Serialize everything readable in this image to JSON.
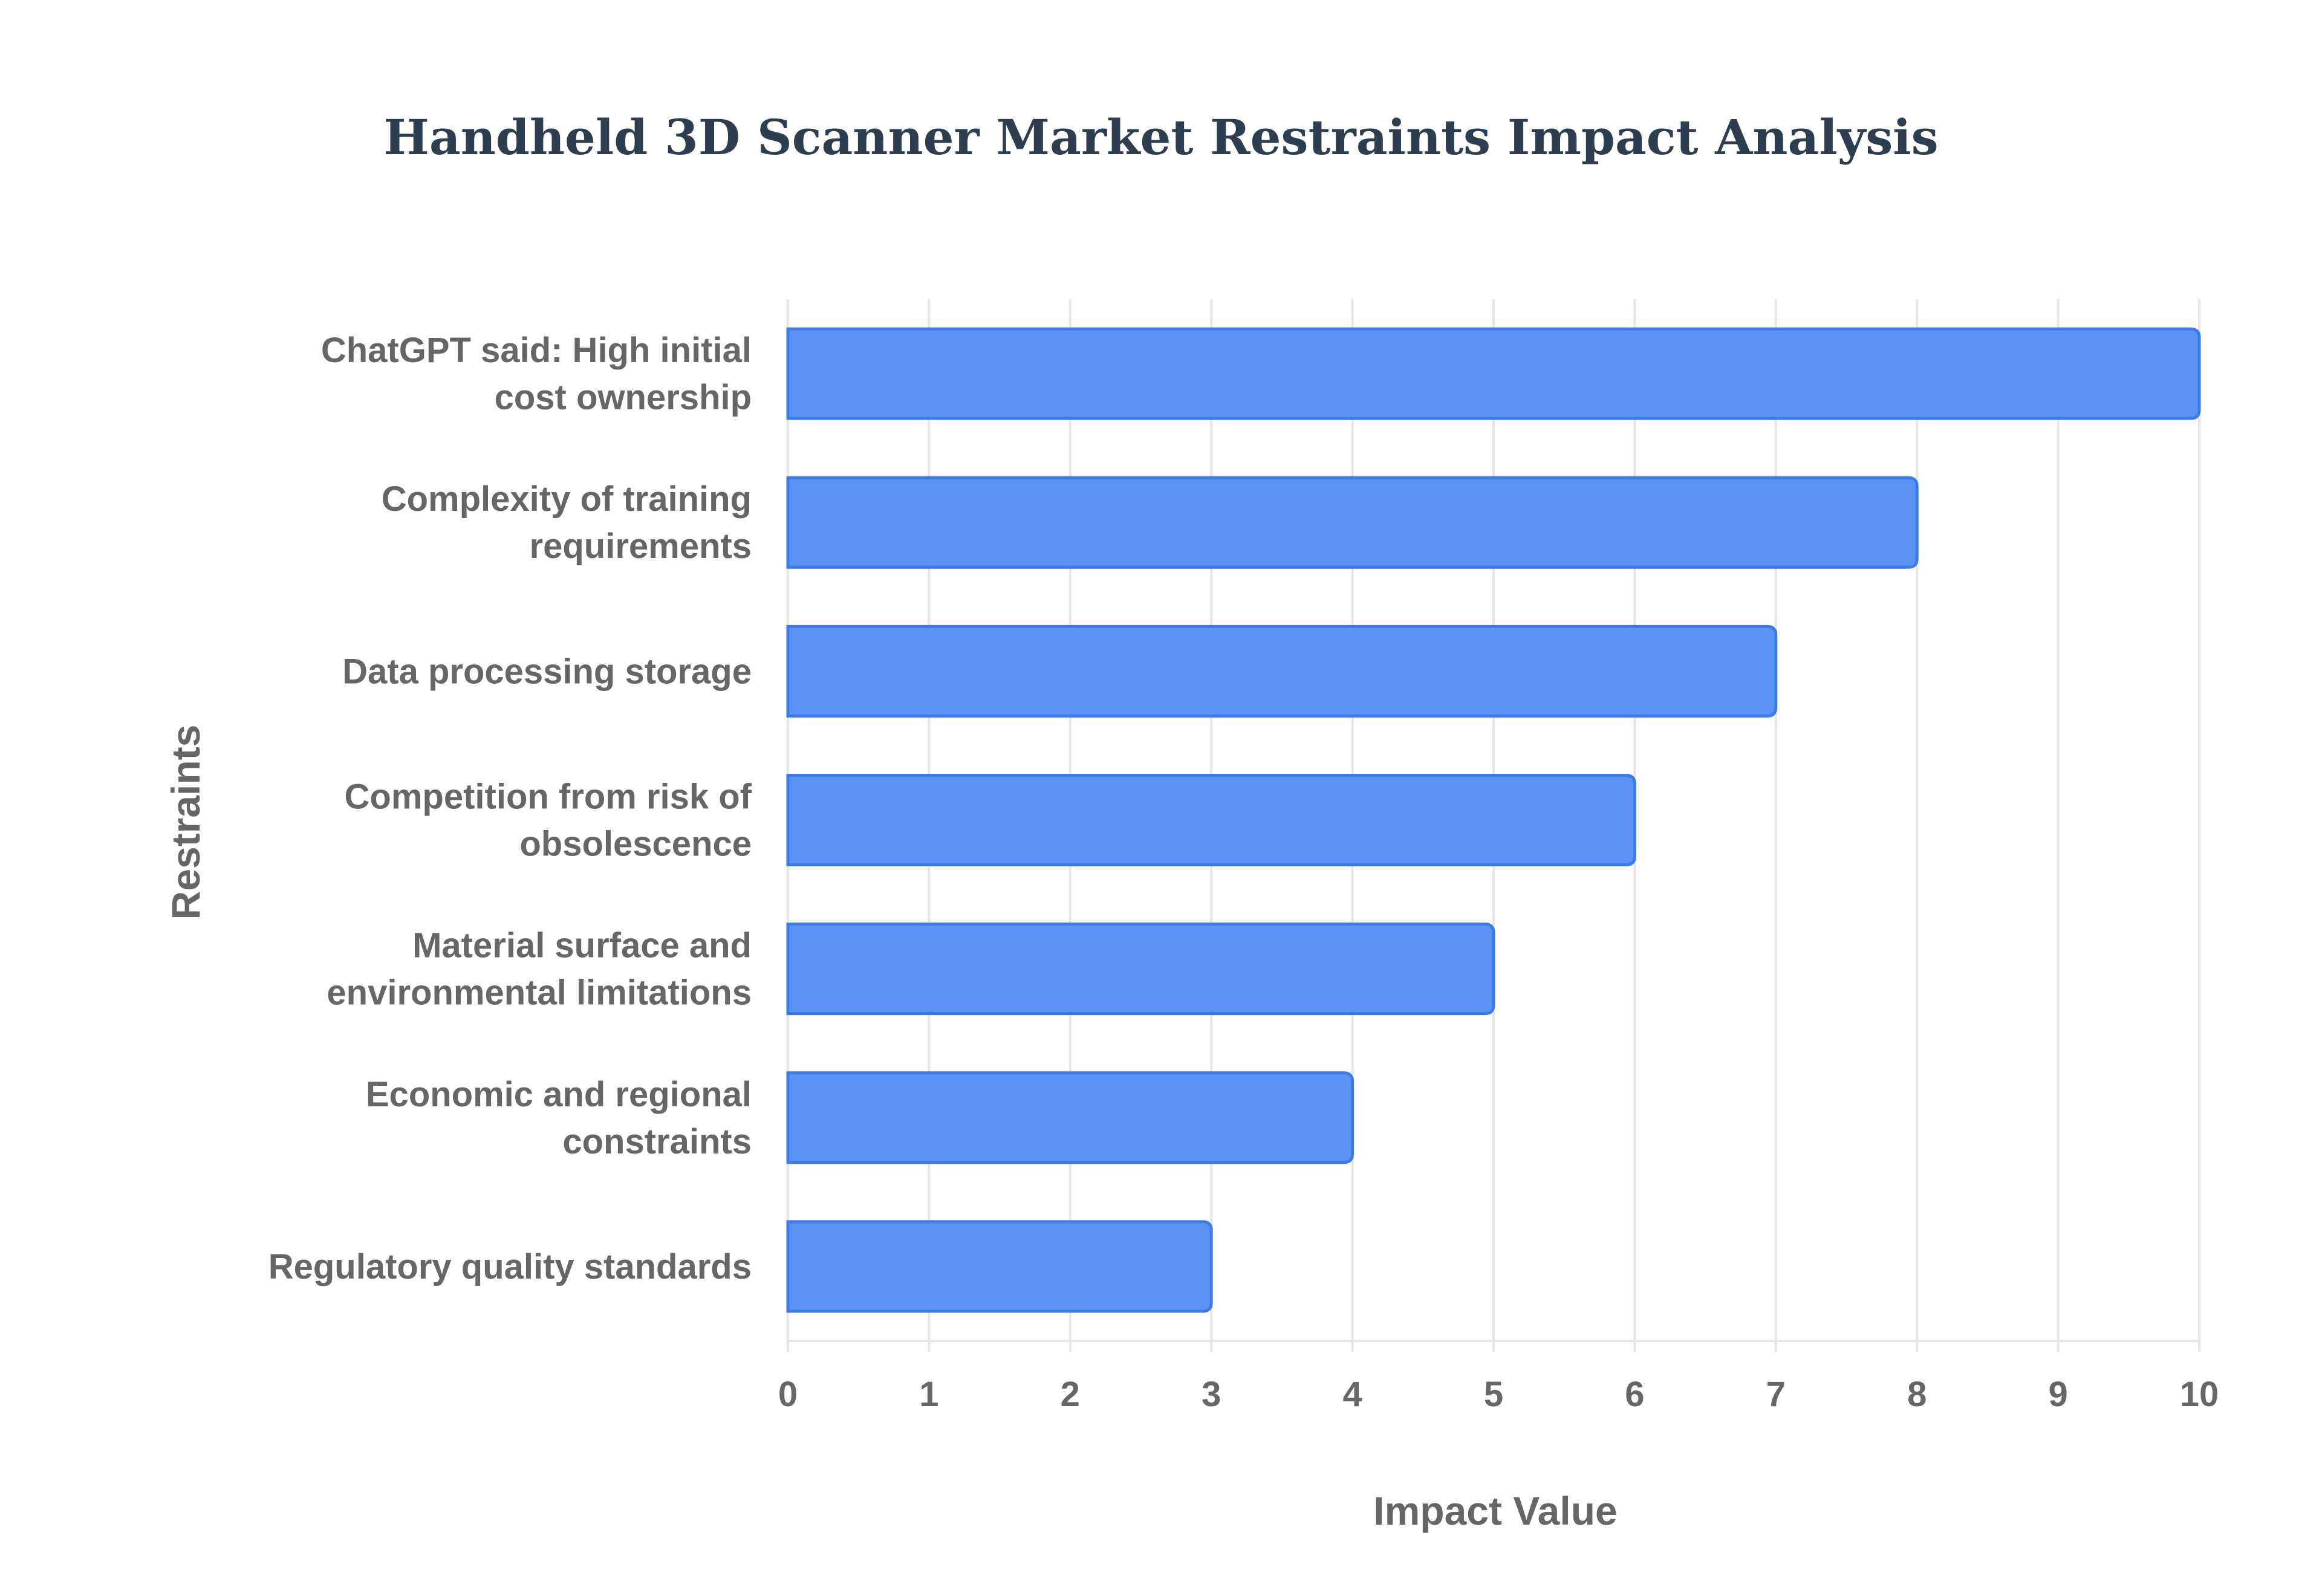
{
  "chart_data": {
    "type": "bar",
    "orientation": "horizontal",
    "title": "Handheld 3D Scanner Market Restraints Impact Analysis",
    "xlabel": "Impact Value",
    "ylabel": "Restraints",
    "categories": [
      [
        "ChatGPT said: High initial",
        "cost ownership"
      ],
      [
        "Complexity of training",
        "requirements"
      ],
      [
        "Data processing storage"
      ],
      [
        "Competition from risk of",
        "obsolescence"
      ],
      [
        "Material surface and",
        "environmental limitations"
      ],
      [
        "Economic and regional",
        "constraints"
      ],
      [
        "Regulatory quality standards"
      ]
    ],
    "values": [
      10,
      8,
      7,
      6,
      5,
      4,
      3
    ],
    "xlim": [
      0,
      10
    ],
    "xticks": [
      "0",
      "1",
      "2",
      "3",
      "4",
      "5",
      "6",
      "7",
      "8",
      "9",
      "10"
    ],
    "grid": true,
    "legend": "none",
    "colors": {
      "bar_fill": "#5b93f5",
      "bar_stroke": "#3b7be8",
      "grid": "#e6e6e6",
      "text": "#666666",
      "title": "#2c3e50"
    }
  }
}
